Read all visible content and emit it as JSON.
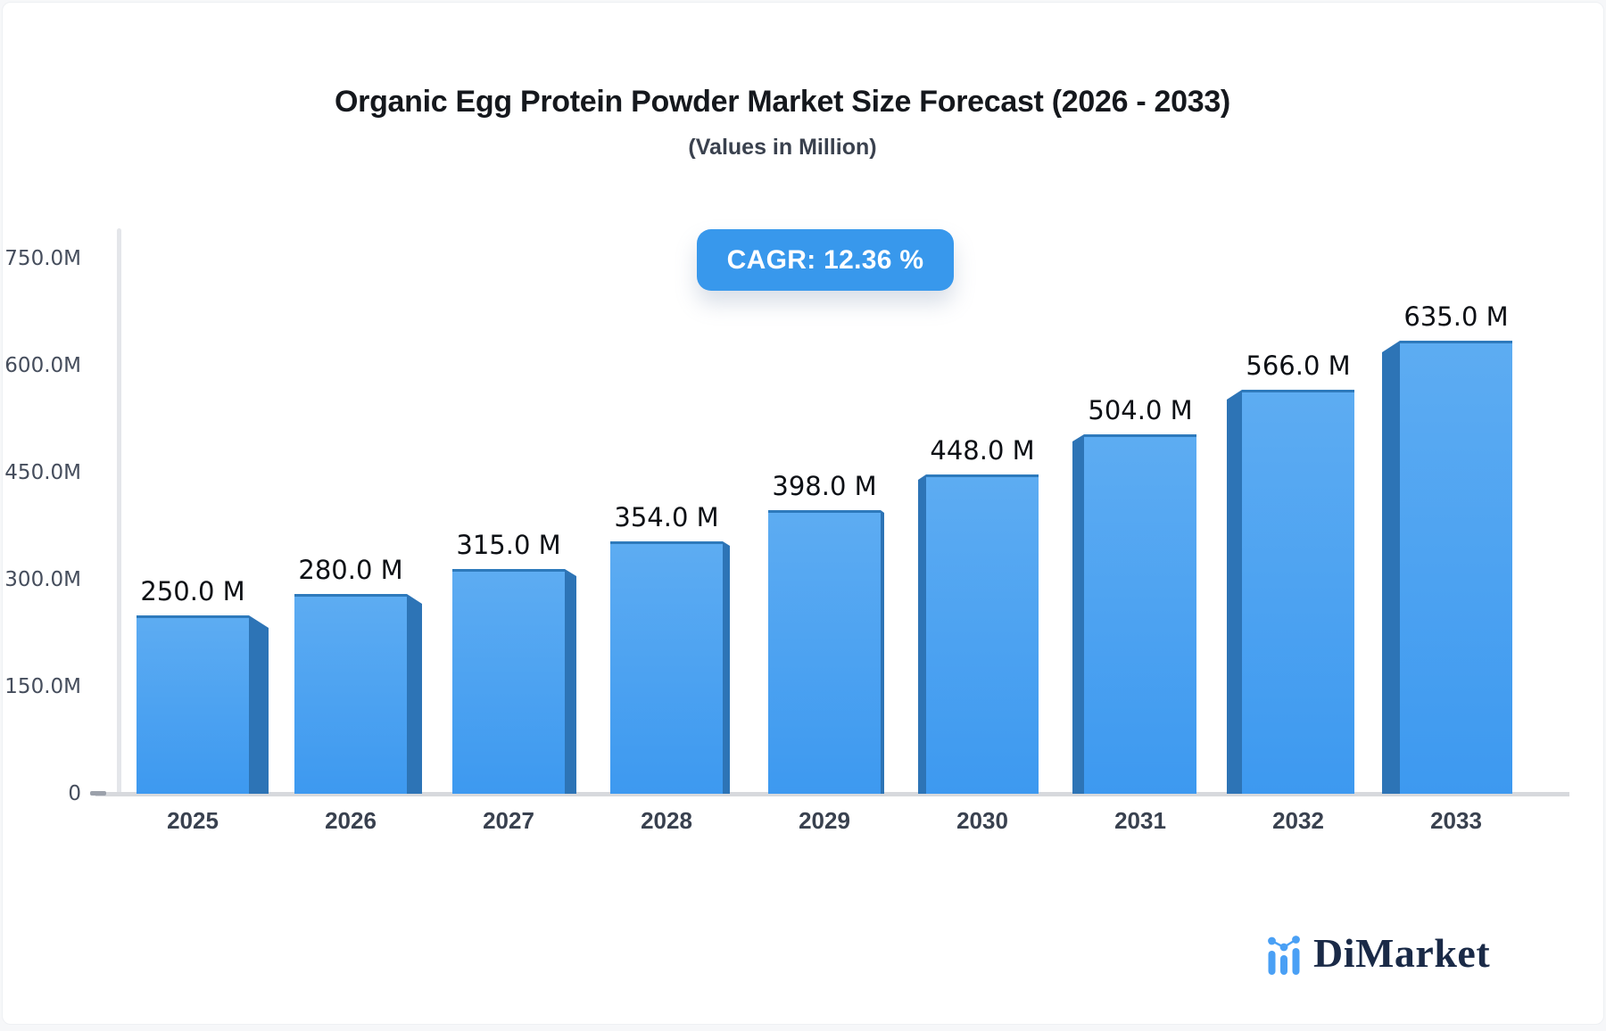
{
  "page": {
    "background": "#f6f7f9",
    "card_background": "#ffffff"
  },
  "header": {
    "title": "Organic Egg Protein Powder Market Size Forecast (2026 - 2033)",
    "subtitle": "(Values in Million)",
    "cagr_badge": "CAGR: 12.36 %",
    "badge_color": "#3898ec"
  },
  "chart_data": {
    "type": "bar",
    "title": "Organic Egg Protein Powder Market Size Forecast (2026 - 2033)",
    "subtitle": "(Values in Million)",
    "cagr_percent": 12.36,
    "categories": [
      "2025",
      "2026",
      "2027",
      "2028",
      "2029",
      "2030",
      "2031",
      "2032",
      "2033"
    ],
    "values": [
      250,
      280,
      315,
      354,
      398,
      448,
      504,
      566,
      635
    ],
    "bar_labels": [
      "250.0 M",
      "280.0 M",
      "315.0 M",
      "354.0 M",
      "398.0 M",
      "448.0 M",
      "504.0 M",
      "566.0 M",
      "635.0 M"
    ],
    "xlabel": "",
    "ylabel": "",
    "ylim": [
      0,
      750
    ],
    "yticks": [
      {
        "value": 0,
        "label": "0"
      },
      {
        "value": 150,
        "label": "150.0M"
      },
      {
        "value": 300,
        "label": "300.0M"
      },
      {
        "value": 450,
        "label": "450.0M"
      },
      {
        "value": 600,
        "label": "600.0M"
      },
      {
        "value": 750,
        "label": "750.0M"
      }
    ],
    "grid": false,
    "legend": false,
    "style": "3d-perspective-columns",
    "bar_face_top_color": "#5dacf2",
    "bar_face_bottom_color": "#3d99f0",
    "bar_side_color": "#2d74b6",
    "bar_top_edge_color": "#2e7abc"
  },
  "footer": {
    "brand": "DiMarket",
    "logo_icon": "mini-bar-chart-icon",
    "brand_text_color": "#1a2a47",
    "logo_accent_color": "#4aa0f5"
  }
}
